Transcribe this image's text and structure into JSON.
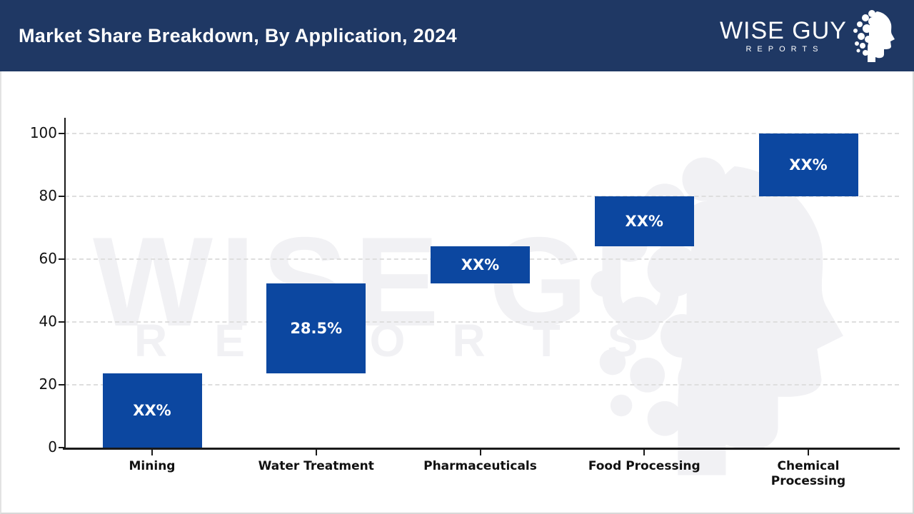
{
  "header": {
    "title": "Market Share Breakdown, By Application, 2024",
    "logo": {
      "brand": "WISE GUY",
      "subtext": "REPORTS"
    }
  },
  "watermark": {
    "line1": "WISE GUY",
    "line2": "REPORTS"
  },
  "colors": {
    "header_bg": "#1f3864",
    "bar": "#0c47a0",
    "bar_label": "#ffffff",
    "grid": "#dedede",
    "axis": "#1a1a1a",
    "tick_label": "#111111",
    "watermark": "#f1f1f4"
  },
  "chart_data": {
    "type": "bar",
    "subtype": "waterfall",
    "title": "Market Share Breakdown, By Application, 2024",
    "xlabel": "",
    "ylabel": "",
    "units": "percent market share",
    "ylim": [
      0,
      105
    ],
    "yticks": [
      0,
      20,
      40,
      60,
      80,
      100
    ],
    "grid": "horizontal-dashed",
    "legend": "none",
    "categories": [
      "Mining",
      "Water Treatment",
      "Pharmaceuticals",
      "Food Processing",
      "Chemical Processing"
    ],
    "segments": [
      {
        "category": "Mining",
        "start": 0,
        "end": 23.7,
        "value": 23.7,
        "label": "XX%"
      },
      {
        "category": "Water Treatment",
        "start": 23.7,
        "end": 52.2,
        "value": 28.5,
        "label": "28.5%"
      },
      {
        "category": "Pharmaceuticals",
        "start": 52.2,
        "end": 64,
        "value": 11.8,
        "label": "XX%"
      },
      {
        "category": "Food Processing",
        "start": 64,
        "end": 80,
        "value": 16,
        "label": "XX%"
      },
      {
        "category": "Chemical Processing",
        "start": 80,
        "end": 100,
        "value": 20,
        "label": "XX%"
      }
    ]
  }
}
